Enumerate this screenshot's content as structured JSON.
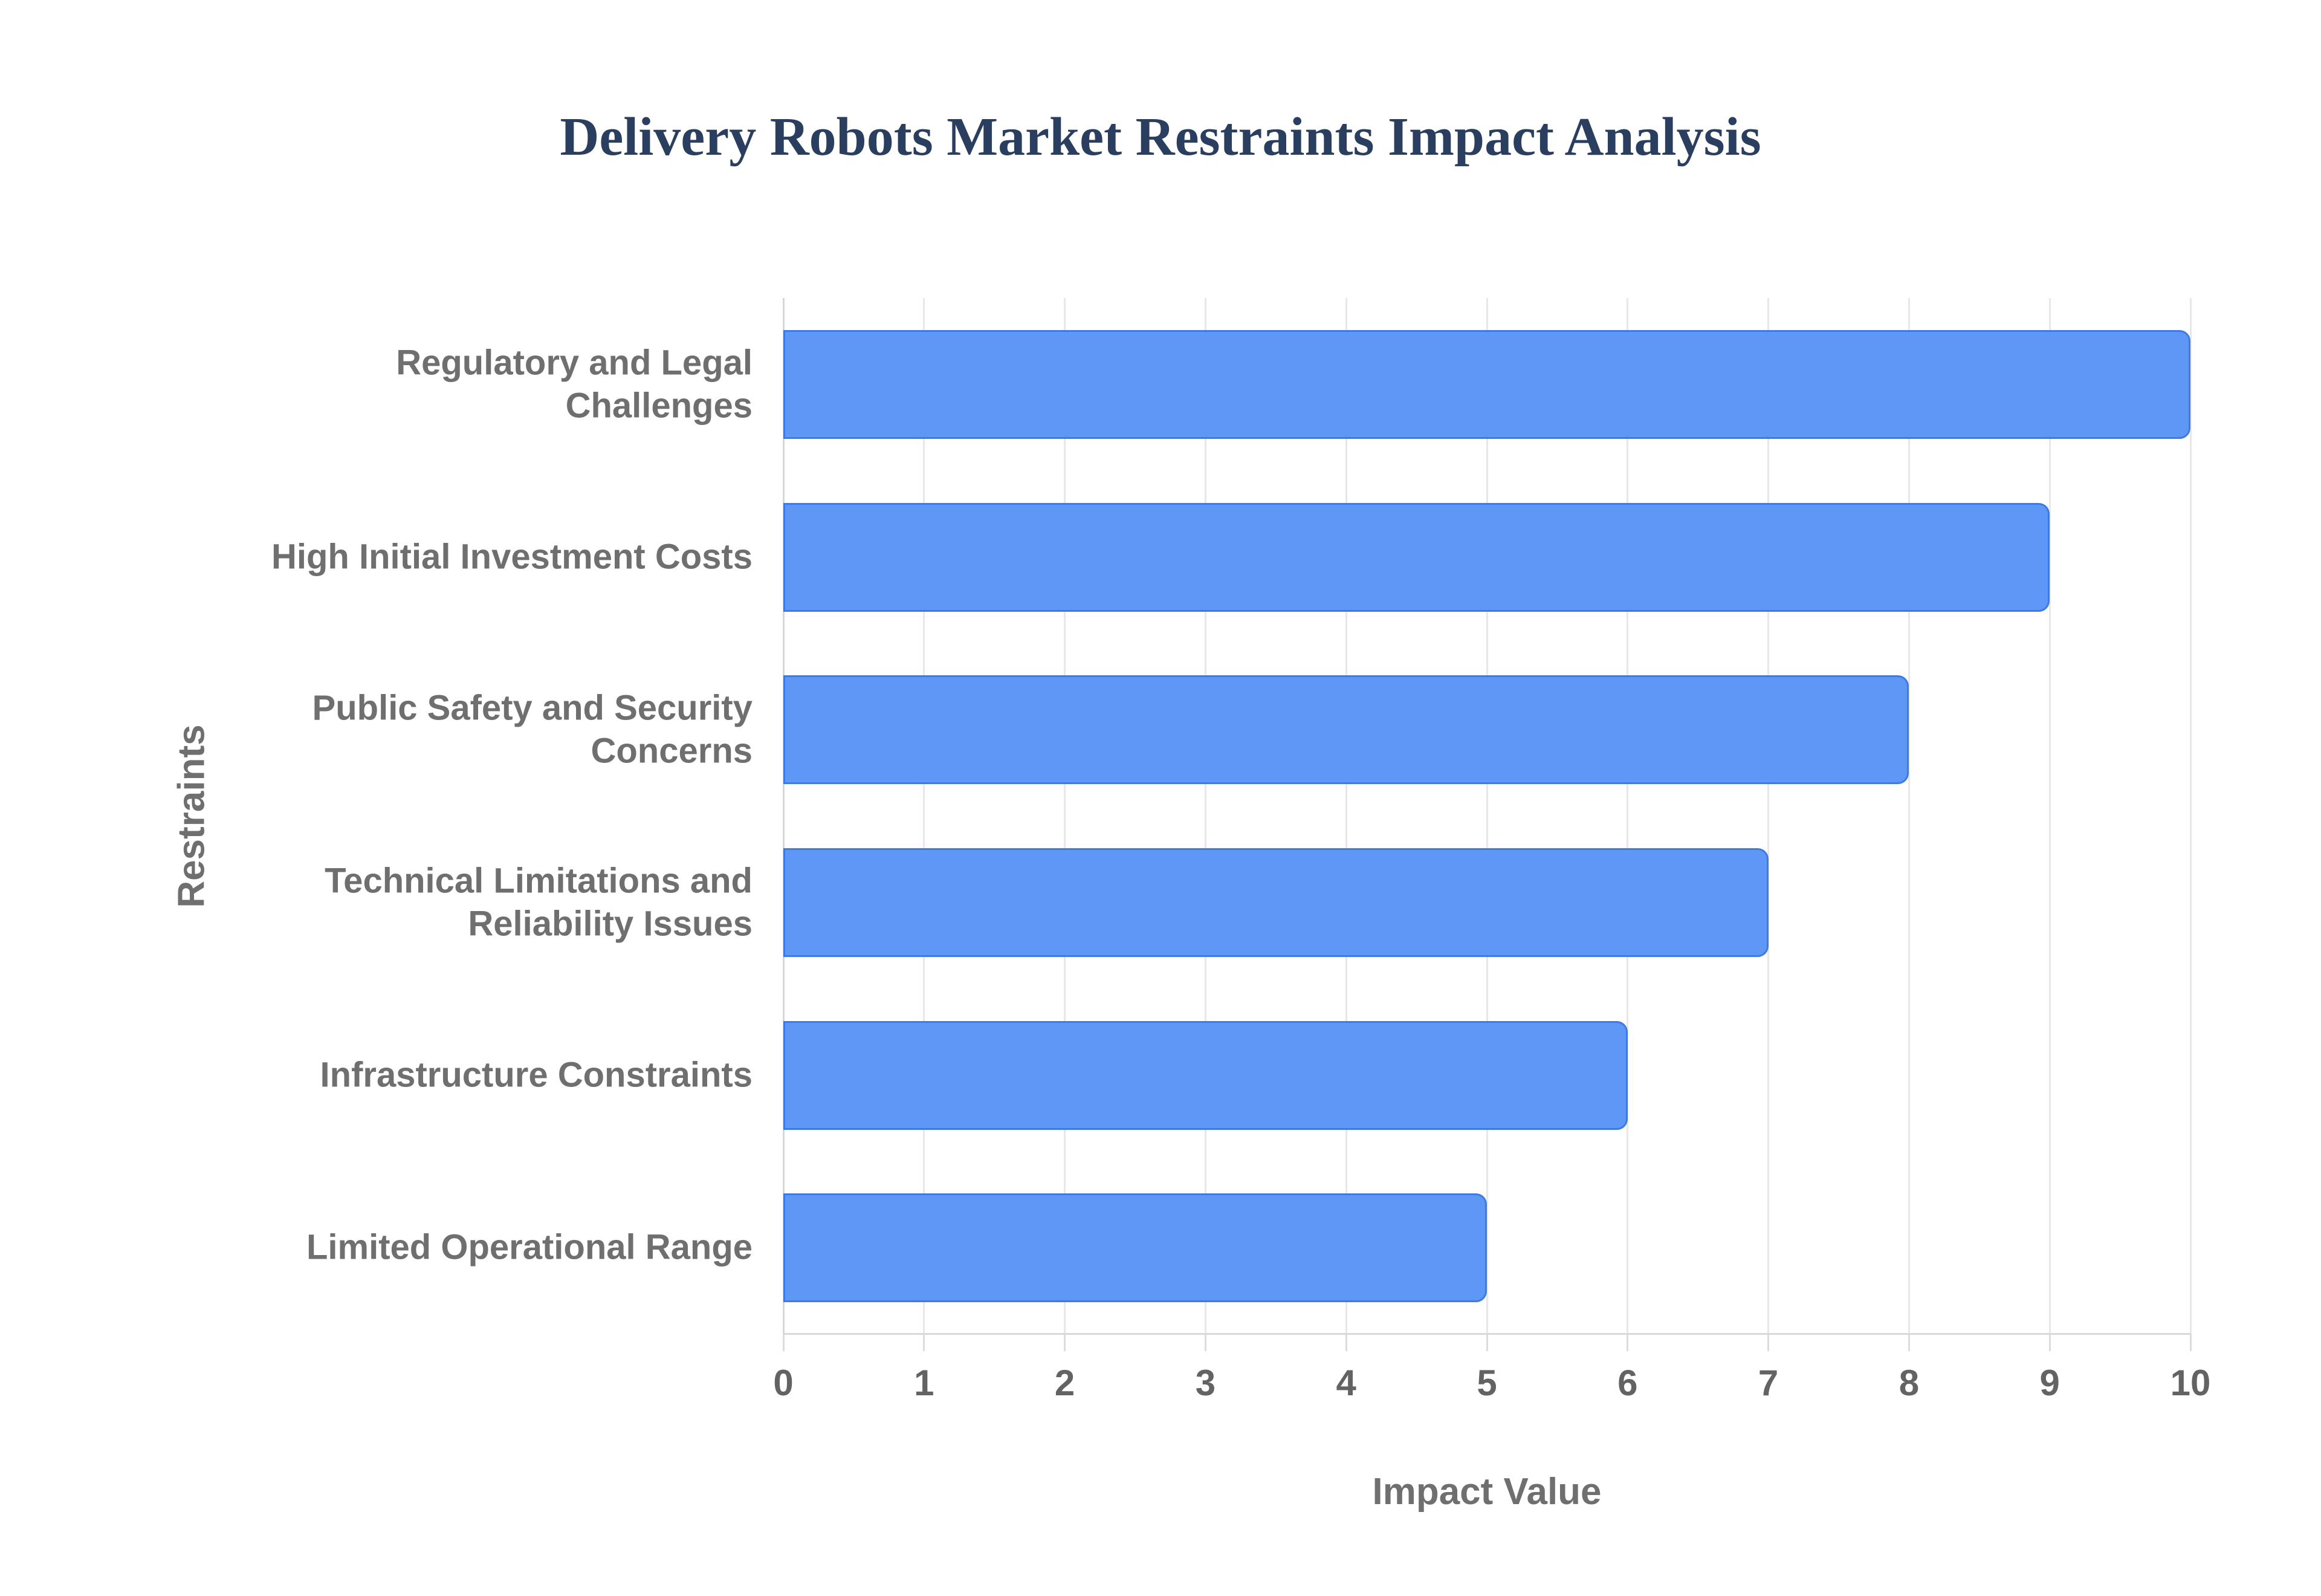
{
  "chart_data": {
    "type": "bar",
    "orientation": "horizontal",
    "title": "Delivery Robots Market Restraints Impact Analysis",
    "xlabel": "Impact Value",
    "ylabel": "Restraints",
    "categories": [
      "Regulatory and Legal Challenges",
      "High Initial Investment Costs",
      "Public Safety and Security Concerns",
      "Technical Limitations and Reliability Issues",
      "Infrastructure Constraints",
      "Limited Operational Range"
    ],
    "category_lines": [
      [
        "Regulatory and Legal",
        "Challenges"
      ],
      [
        "High Initial Investment Costs"
      ],
      [
        "Public Safety and Security",
        "Concerns"
      ],
      [
        "Technical Limitations and",
        "Reliability Issues"
      ],
      [
        "Infrastructure Constraints"
      ],
      [
        "Limited Operational Range"
      ]
    ],
    "values": [
      10,
      9,
      8,
      7,
      6,
      5
    ],
    "xlim": [
      0,
      10
    ],
    "xticks": [
      "0",
      "1",
      "2",
      "3",
      "4",
      "5",
      "6",
      "7",
      "8",
      "9",
      "10"
    ],
    "grid": true,
    "legend": "none",
    "colors": {
      "bar_fill": "#5e97f6",
      "bar_stroke": "#3d7ae5",
      "gridline": "#e8e8e8",
      "zero_line": "#d6d6d6",
      "baseline": "#d9d9d9",
      "tickmark": "#dcdcdc",
      "title_text": "#2a3f5f",
      "tick_text": "#636363",
      "category_text": "#6f6f6f",
      "axis_title_text": "#6f6f6f",
      "background": "#ffffff"
    }
  }
}
